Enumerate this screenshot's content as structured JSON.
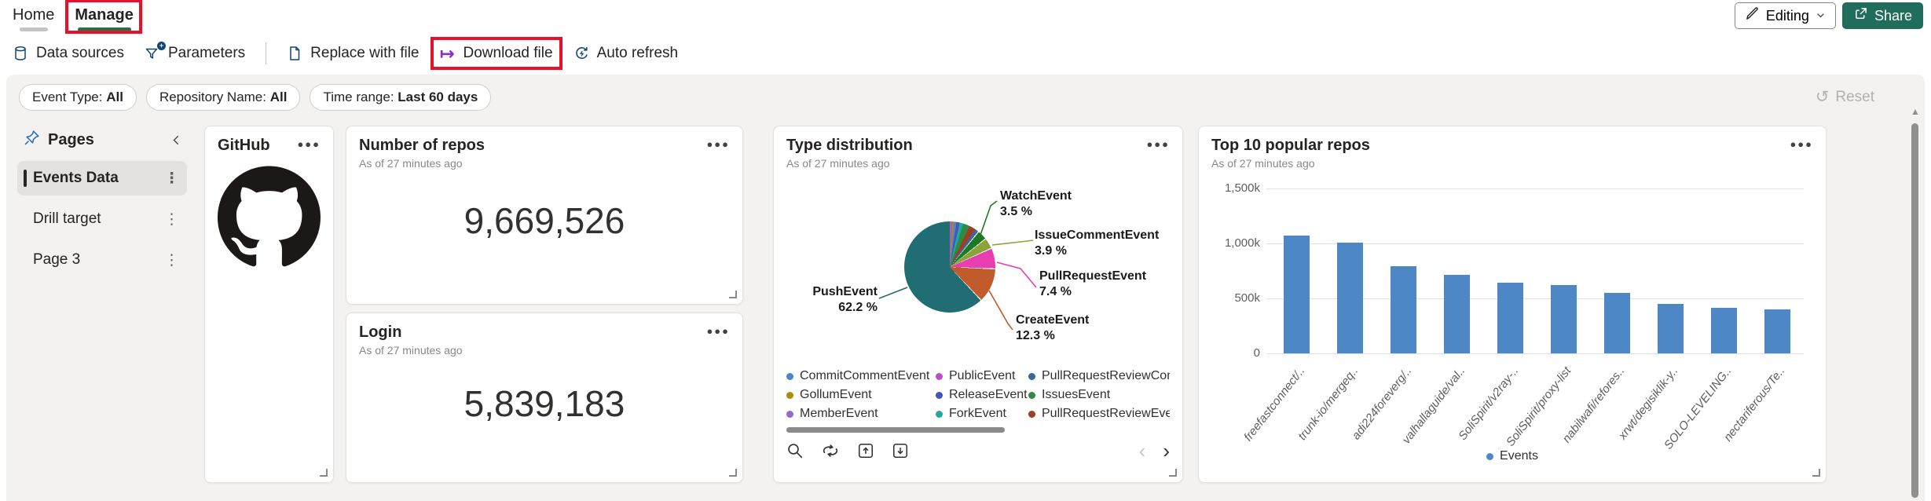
{
  "topbar": {
    "tabs": [
      {
        "label": "Home",
        "active": false,
        "annotated": false
      },
      {
        "label": "Manage",
        "active": true,
        "annotated": true
      }
    ],
    "editing_button": "Editing",
    "share_button": "Share"
  },
  "ribbon": {
    "items": [
      {
        "label": "Data sources",
        "icon": "database-icon",
        "divider_before": false,
        "annotated": false
      },
      {
        "label": "Parameters",
        "icon": "funnel-add-icon",
        "divider_before": false,
        "annotated": false
      },
      {
        "label": "Replace with file",
        "icon": "document-icon",
        "divider_before": true,
        "annotated": false
      },
      {
        "label": "Download file",
        "icon": "download-file-icon",
        "divider_before": false,
        "annotated": true
      },
      {
        "label": "Auto refresh",
        "icon": "auto-refresh-icon",
        "divider_before": false,
        "annotated": false
      }
    ]
  },
  "filterbar": {
    "filters": [
      {
        "label": "Event Type:",
        "value": "All"
      },
      {
        "label": "Repository Name:",
        "value": "All"
      },
      {
        "label": "Time range:",
        "value": "Last 60 days"
      }
    ],
    "reset_label": "Reset"
  },
  "sidebar": {
    "title": "Pages",
    "pages": [
      {
        "label": "Events Data",
        "selected": true
      },
      {
        "label": "Drill target",
        "selected": false
      },
      {
        "label": "Page 3",
        "selected": false
      }
    ]
  },
  "cards": {
    "github": {
      "title": "GitHub"
    },
    "number_of_repos": {
      "title": "Number of repos",
      "subtitle": "As of 27 minutes ago",
      "value": "9,669,526"
    },
    "login": {
      "title": "Login",
      "subtitle": "As of 27 minutes ago",
      "value": "5,839,183"
    },
    "type_distribution": {
      "title": "Type distribution",
      "subtitle": "As of 27 minutes ago",
      "legend": [
        {
          "label": "CommitCommentEvent",
          "color": "#4a84d2"
        },
        {
          "label": "PublicEvent",
          "color": "#bb4fc3"
        },
        {
          "label": "PullRequestReviewComr",
          "color": "#39679e"
        },
        {
          "label": "GollumEvent",
          "color": "#ab8c0f"
        },
        {
          "label": "ReleaseEvent",
          "color": "#4653b8"
        },
        {
          "label": "IssuesEvent",
          "color": "#2e8b44"
        },
        {
          "label": "MemberEvent",
          "color": "#9469c8"
        },
        {
          "label": "ForkEvent",
          "color": "#23a89f"
        },
        {
          "label": "PullRequestReviewEvent",
          "color": "#a13d20"
        }
      ]
    },
    "top_repos": {
      "title": "Top 10 popular repos",
      "subtitle": "As of 27 minutes ago"
    }
  },
  "chart_data": [
    {
      "type": "pie",
      "title": "Type distribution",
      "slices": [
        {
          "label": "MemberEvent",
          "value": 0.4,
          "color": "#9469c8",
          "callout": false
        },
        {
          "label": "PublicEvent",
          "value": 0.5,
          "color": "#bb4fc3",
          "callout": false
        },
        {
          "label": "GollumEvent",
          "value": 0.6,
          "color": "#ab8c0f",
          "callout": false
        },
        {
          "label": "CommitCommentEvent",
          "value": 0.9,
          "color": "#4a84d2",
          "callout": false
        },
        {
          "label": "ReleaseEvent",
          "value": 1.1,
          "color": "#4653b8",
          "callout": false
        },
        {
          "label": "ForkEvent",
          "value": 1.3,
          "color": "#23a89f",
          "callout": false
        },
        {
          "label": "IssuesEvent",
          "value": 2.4,
          "color": "#2e8b44",
          "callout": false
        },
        {
          "label": "PullRequestReviewEvent",
          "value": 2.2,
          "color": "#a13d20",
          "callout": false
        },
        {
          "label": "PullRequestReviewCommentEvent",
          "value": 1.3,
          "color": "#39679e",
          "callout": false
        },
        {
          "label": "WatchEvent",
          "value": 3.5,
          "color": "#1e7a21",
          "callout": true
        },
        {
          "label": "IssueCommentEvent",
          "value": 3.9,
          "color": "#8aa33b",
          "callout": true
        },
        {
          "label": "PullRequestEvent",
          "value": 7.4,
          "color": "#e83fb0",
          "callout": true
        },
        {
          "label": "CreateEvent",
          "value": 12.3,
          "color": "#c15b2b",
          "callout": true
        },
        {
          "label": "PushEvent",
          "value": 62.2,
          "color": "#206e74",
          "callout": true
        }
      ]
    },
    {
      "type": "bar",
      "title": "Top 10 popular repos",
      "categories": [
        "freefastconnect/..",
        "trunk-io/mergeq..",
        "adi224foreverg/..",
        "valhallaguide/val..",
        "SoliSpirit/v2ray-..",
        "SoliSpirit/proxy-list",
        "nabilwafi/refores..",
        "xrwt/degisiklik-y..",
        "SOLO-LEVELING..",
        "nectariferous/Te.."
      ],
      "values_thousands": [
        1075,
        1005,
        790,
        715,
        640,
        620,
        550,
        450,
        415,
        400
      ],
      "y_ticks": [
        "1,500k",
        "1,000k",
        "500k",
        "0"
      ],
      "ylim_thousands": [
        0,
        1500
      ],
      "bar_color": "#4e87c6",
      "xlabel": "",
      "ylabel": "",
      "legend": [
        {
          "label": "Events",
          "color": "#4e87c6"
        }
      ],
      "legend_position": "bottom"
    }
  ]
}
